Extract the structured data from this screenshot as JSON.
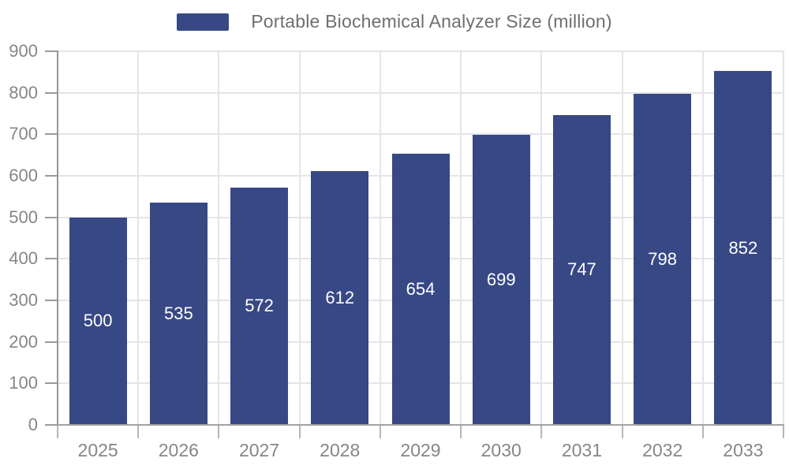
{
  "legend": {
    "label": "Portable Biochemical Analyzer Size (million)"
  },
  "colors": {
    "bar": "#374885",
    "bar_label": "#ffffff",
    "axis_line": "#9a9a9a",
    "gridline": "#e4e4e9",
    "axis_label": "#868686",
    "legend_text": "#6f6f6f",
    "background": "#ffffff"
  },
  "chart_data": {
    "type": "bar",
    "title": "Portable Biochemical Analyzer Size (million)",
    "categories": [
      "2025",
      "2026",
      "2027",
      "2028",
      "2029",
      "2030",
      "2031",
      "2032",
      "2033"
    ],
    "values": [
      500,
      535,
      572,
      612,
      654,
      699,
      747,
      798,
      852
    ],
    "xlabel": "",
    "ylabel": "",
    "ylim": [
      0,
      900
    ],
    "ytick_interval": 100,
    "ytick_labels": [
      "0",
      "100",
      "200",
      "300",
      "400",
      "500",
      "600",
      "700",
      "800",
      "900"
    ],
    "grid": true,
    "legend_position": "top-center",
    "value_label_position": "inside-center",
    "bar_color": "#374885"
  }
}
